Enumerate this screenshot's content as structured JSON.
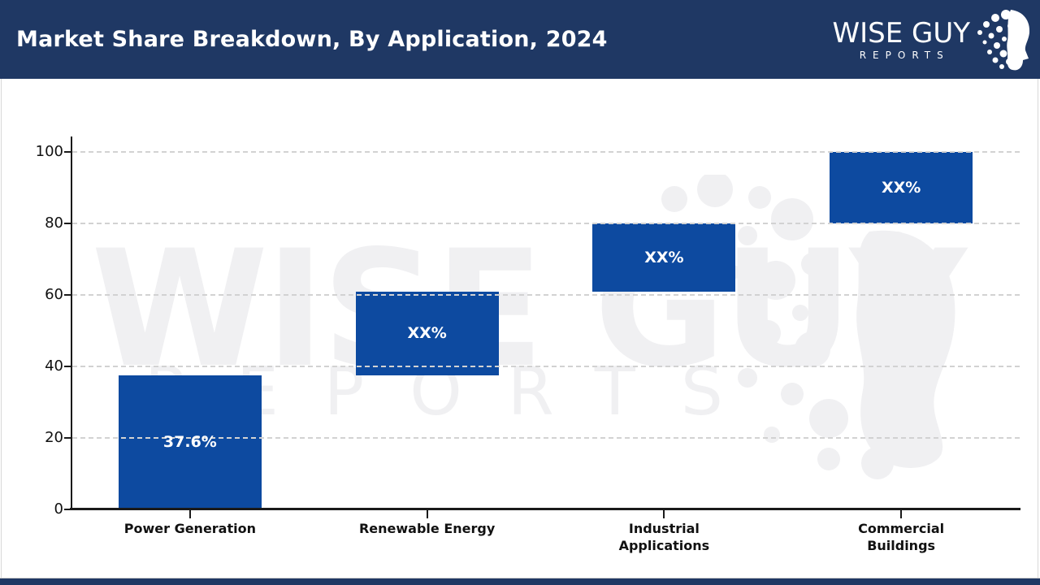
{
  "header": {
    "title": "Market Share Breakdown, By Application, 2024",
    "background_color": "#1f3864",
    "logo": {
      "line1": "WISE GUY",
      "line2": "REPORTS"
    }
  },
  "watermark": {
    "line1": "WISE GUY",
    "line2": "REPORTS"
  },
  "footer": {
    "background_color": "#1f3864"
  },
  "chart_data": {
    "type": "bar",
    "subtype": "waterfall-style floating bars",
    "title": "Market Share Breakdown, By Application, 2024",
    "categories": [
      "Power Generation",
      "Renewable Energy",
      "Industrial Applications",
      "Commercial Buildings"
    ],
    "segments": [
      {
        "category": "Power Generation",
        "label_lines": [
          "Power Generation"
        ],
        "start": 0,
        "end": 37.6,
        "bar_label": "37.6%"
      },
      {
        "category": "Renewable Energy",
        "label_lines": [
          "Renewable Energy"
        ],
        "start": 37.6,
        "end": 61,
        "bar_label": "XX%"
      },
      {
        "category": "Industrial Applications",
        "label_lines": [
          "Industrial",
          "Applications"
        ],
        "start": 61,
        "end": 80,
        "bar_label": "XX%"
      },
      {
        "category": "Commercial Buildings",
        "label_lines": [
          "Commercial",
          "Buildings"
        ],
        "start": 80,
        "end": 100,
        "bar_label": "XX%"
      }
    ],
    "xlabel": "",
    "ylabel": "",
    "ylim": [
      0,
      100
    ],
    "yticks": [
      0,
      20,
      40,
      60,
      80,
      100
    ],
    "grid": "horizontal dashed, drawn over bars",
    "legend": "none",
    "bar_color": "#0d4aa0",
    "bar_label_color": "#ffffff",
    "axis_color": "#1a1a1a",
    "gridline_color": "#d2d2d2"
  }
}
